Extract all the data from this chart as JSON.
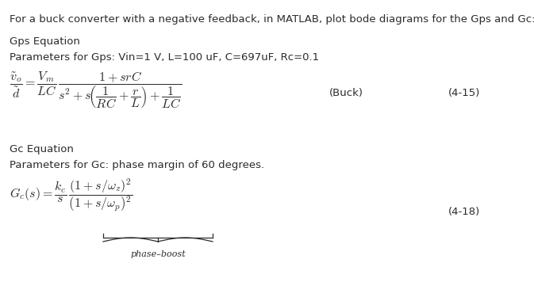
{
  "title_line": "For a buck converter with a negative feedback, in MATLAB, plot bode diagrams for the Gps and Gc:",
  "gps_heading": "Gps Equation",
  "gps_params": "Parameters for Gps: Vin=1 V, L=100 uF, C=697uF, Rc=0.1",
  "gc_heading": "Gc Equation",
  "gc_params": "Parameters for Gc: phase margin of 60 degrees.",
  "buck_label": "(Buck)",
  "eq_label_1": "(4-15)",
  "eq_label_2": "(4-18)",
  "phase_boost_label": "phase–boost",
  "bg_color": "#ffffff",
  "text_color": "#2b2b2b",
  "fig_width": 6.73,
  "fig_height": 3.56,
  "fig_dpi": 100,
  "fs_text": 9.5,
  "fs_math": 11.5,
  "fs_small": 8.0
}
